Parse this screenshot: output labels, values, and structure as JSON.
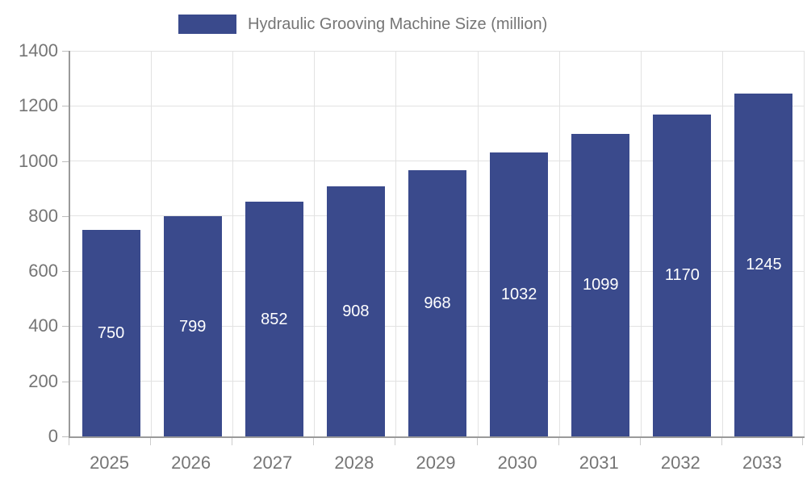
{
  "chart_data": {
    "type": "bar",
    "title": "Hydraulic Grooving Machine Size (million)",
    "legend": {
      "label": "Hydraulic Grooving Machine Size (million)",
      "position": "top"
    },
    "categories": [
      "2025",
      "2026",
      "2027",
      "2028",
      "2029",
      "2030",
      "2031",
      "2032",
      "2033"
    ],
    "values": [
      750,
      799,
      852,
      908,
      968,
      1032,
      1099,
      1170,
      1245
    ],
    "value_labels_shown": true,
    "xlabel": "",
    "ylabel": "",
    "ylim": [
      0,
      1400
    ],
    "yticks": [
      0,
      200,
      400,
      600,
      800,
      1000,
      1200,
      1400
    ],
    "grid": true,
    "colors": {
      "bar": "#3a4a8c",
      "value_label": "#ffffff",
      "tick_label": "#757575",
      "legend_label": "#757575",
      "axis_line": "#9a9a9a",
      "gridline": "#e2e2e2",
      "background": "#ffffff"
    }
  }
}
